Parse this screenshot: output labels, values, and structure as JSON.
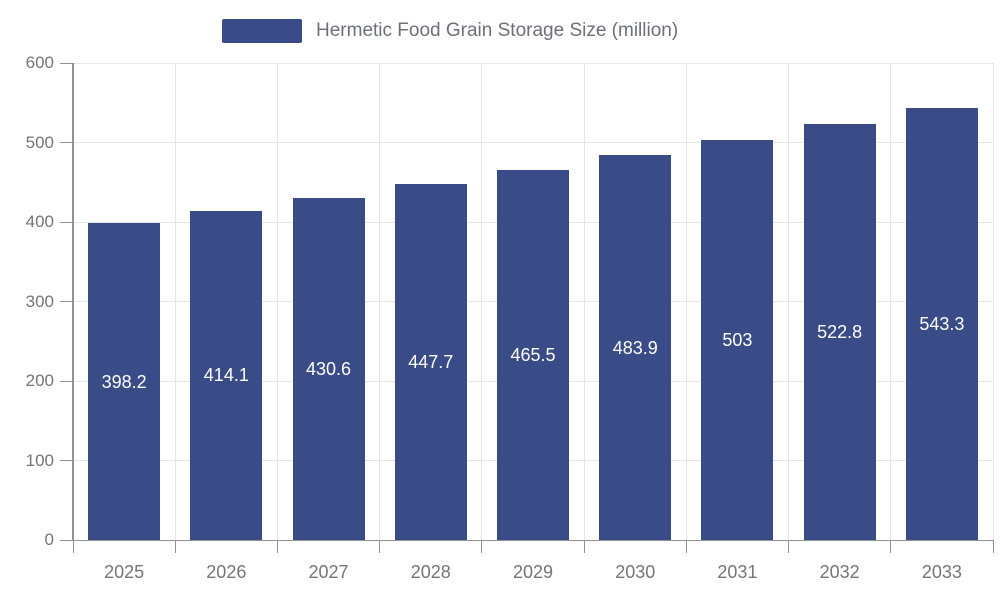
{
  "chart_data": {
    "type": "bar",
    "title": "Hermetic Food Grain Storage Size (million)",
    "categories": [
      "2025",
      "2026",
      "2027",
      "2028",
      "2029",
      "2030",
      "2031",
      "2032",
      "2033"
    ],
    "values": [
      398.2,
      414.1,
      430.6,
      447.7,
      465.5,
      483.9,
      503,
      522.8,
      543.3
    ],
    "value_labels": [
      "398.2",
      "414.1",
      "430.6",
      "447.7",
      "465.5",
      "483.9",
      "503",
      "522.8",
      "543.3"
    ],
    "series_name": "Hermetic Food Grain Storage Size (million)",
    "xlabel": "",
    "ylabel": "",
    "ylim": [
      0,
      600
    ],
    "yticks": [
      0,
      100,
      200,
      300,
      400,
      500,
      600
    ],
    "grid": true,
    "legend_position": "top-center",
    "value_label_position": "center-inside"
  },
  "colors": {
    "bar": "#3A4C87",
    "axis_line": "#929292",
    "grid_line": "#E6E6E6",
    "axis_text": "#757575",
    "legend_text": "#6E7079",
    "value_text": "#FFFFFF",
    "background": "#FFFFFF"
  }
}
